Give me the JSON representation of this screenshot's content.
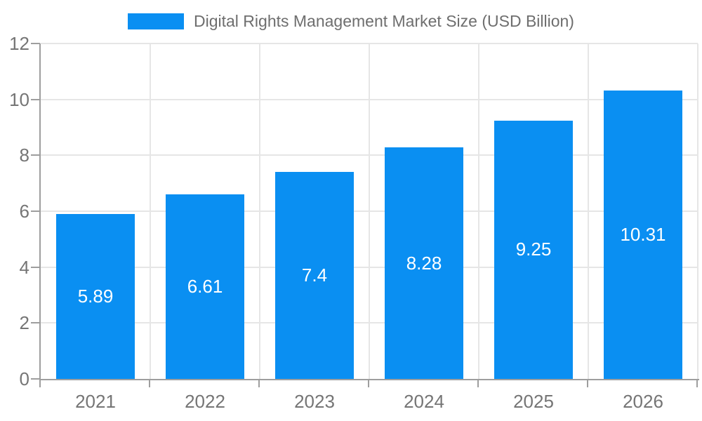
{
  "chart_data": {
    "type": "bar",
    "title": "Digital Rights Management Market Size (USD Billion)",
    "legend": {
      "label": "Digital Rights Management Market Size (USD Billion)",
      "position": "top"
    },
    "categories": [
      "2021",
      "2022",
      "2023",
      "2024",
      "2025",
      "2026"
    ],
    "values": [
      5.89,
      6.61,
      7.4,
      8.28,
      9.25,
      10.31
    ],
    "value_labels": [
      "5.89",
      "6.61",
      "7.4",
      "8.28",
      "9.25",
      "10.31"
    ],
    "xlabel": "",
    "ylabel": "",
    "ylim": [
      0,
      12
    ],
    "yticks": [
      0,
      2,
      4,
      6,
      8,
      10,
      12
    ],
    "grid": true,
    "colors": {
      "bar": "#0a8ff2",
      "bar_label": "#ffffff",
      "axis_line": "#9e9e9e",
      "gridline": "#e6e6e6",
      "tick_label": "#757575",
      "legend_text": "#6e6e6e",
      "background": "#ffffff"
    }
  }
}
